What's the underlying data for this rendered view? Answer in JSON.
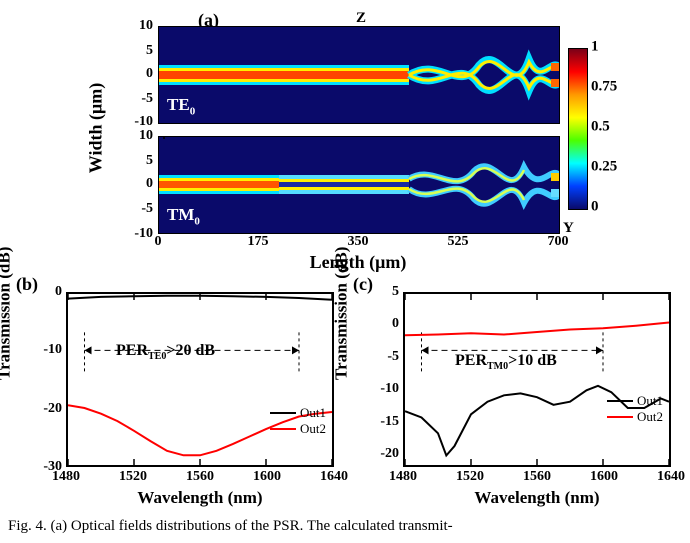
{
  "panel_a": {
    "label": "(a)",
    "z_label": "Z",
    "y_label_right": "Y",
    "width_axis_label": "Width (μm)",
    "length_axis_label": "Length (μm)",
    "y_ticks_top": [
      "10",
      "5",
      "0",
      "-5",
      "-10"
    ],
    "y_ticks_bottom": [
      "10",
      "5",
      "0",
      "-5",
      "-10"
    ],
    "x_ticks": [
      "0",
      "175",
      "350",
      "525",
      "700"
    ],
    "te_label": "TE",
    "te_sub": "0",
    "tm_label": "TM",
    "tm_sub": "0",
    "colorbar": {
      "ticks": [
        "1",
        "0.75",
        "0.5",
        "0.25",
        "0"
      ],
      "gradient": [
        "#7a0018",
        "#ff0000",
        "#ff9900",
        "#ffff00",
        "#4cff00",
        "#00ffff",
        "#0040ff",
        "#0a0a6a"
      ]
    },
    "heatmap_bg": "#0a0a6a"
  },
  "panel_b": {
    "label": "(b)",
    "y_ticks": [
      "0",
      "-10",
      "-20",
      "-30"
    ],
    "x_ticks": [
      "1480",
      "1520",
      "1560",
      "1600",
      "1640"
    ],
    "y_label": "Transmission (dB)",
    "x_label": "Wavelength (nm)",
    "annotation_pre": "PER",
    "annotation_sub": "TE0",
    "annotation_post": ">20 dB",
    "legend": {
      "out1": "Out1",
      "out2": "Out2",
      "c1": "#000000",
      "c2": "#ff0000"
    },
    "ylim": [
      -30,
      0
    ],
    "xlim": [
      1480,
      1640
    ],
    "series": {
      "out1": {
        "color": "#000000",
        "width": 2,
        "x": [
          1480,
          1500,
          1520,
          1540,
          1560,
          1580,
          1600,
          1620,
          1640
        ],
        "y": [
          -0.8,
          -0.5,
          -0.4,
          -0.3,
          -0.3,
          -0.4,
          -0.5,
          -0.7,
          -1.0
        ]
      },
      "out2": {
        "color": "#ff0000",
        "width": 2,
        "x": [
          1480,
          1490,
          1500,
          1510,
          1520,
          1530,
          1540,
          1550,
          1560,
          1570,
          1580,
          1590,
          1600,
          1610,
          1620,
          1630,
          1640
        ],
        "y": [
          -19.5,
          -20.0,
          -21.0,
          -22.3,
          -24.0,
          -25.8,
          -27.5,
          -28.3,
          -28.3,
          -27.5,
          -26.3,
          -25.0,
          -23.7,
          -22.5,
          -21.5,
          -21.0,
          -20.7
        ]
      }
    },
    "marker_x": [
      1490,
      1620
    ]
  },
  "panel_c": {
    "label": "(c)",
    "y_ticks": [
      "5",
      "0",
      "-5",
      "-10",
      "-15",
      "-20"
    ],
    "x_ticks": [
      "1480",
      "1520",
      "1560",
      "1600",
      "1640"
    ],
    "y_label": "Transmission (dB)",
    "x_label": "Wavelength (nm)",
    "annotation_pre": "PER",
    "annotation_sub": "TM0",
    "annotation_post": ">10 dB",
    "legend": {
      "out1": "Out1",
      "out2": "Out2",
      "c1": "#000000",
      "c2": "#ff0000"
    },
    "ylim": [
      -22,
      5
    ],
    "xlim": [
      1480,
      1640
    ],
    "series": {
      "out2": {
        "color": "#ff0000",
        "width": 2,
        "x": [
          1480,
          1500,
          1520,
          1540,
          1560,
          1580,
          1600,
          1620,
          1640
        ],
        "y": [
          -1.5,
          -1.4,
          -1.2,
          -1.4,
          -1.0,
          -0.6,
          -0.4,
          0.0,
          0.5
        ]
      },
      "out1": {
        "color": "#000000",
        "width": 2,
        "x": [
          1480,
          1490,
          1500,
          1505,
          1510,
          1520,
          1530,
          1540,
          1550,
          1560,
          1570,
          1580,
          1590,
          1597,
          1605,
          1615,
          1625,
          1635,
          1640
        ],
        "y": [
          -13.5,
          -14.5,
          -17.0,
          -20.5,
          -19.0,
          -14.0,
          -12.0,
          -11.0,
          -10.7,
          -11.3,
          -12.5,
          -12.0,
          -10.2,
          -9.5,
          -10.5,
          -13.0,
          -13.0,
          -11.5,
          -12.0
        ]
      }
    },
    "marker_x": [
      1490,
      1600
    ]
  },
  "caption": "Fig. 4.   (a) Optical fields distributions of the PSR. The calculated transmit-"
}
